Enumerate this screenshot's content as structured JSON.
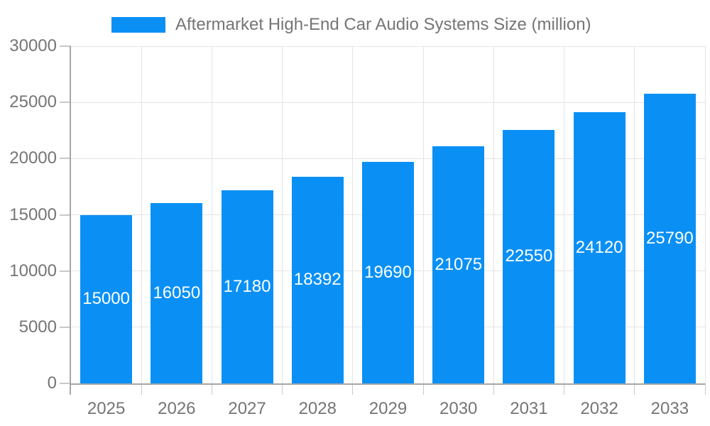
{
  "chart_data": {
    "type": "bar",
    "title": "Aftermarket High-End Car Audio Systems Size (million)",
    "legend_position": "top",
    "categories": [
      "2025",
      "2026",
      "2027",
      "2028",
      "2029",
      "2030",
      "2031",
      "2032",
      "2033"
    ],
    "series": [
      {
        "name": "Aftermarket High-End Car Audio Systems Size (million)",
        "values": [
          15000,
          16050,
          17180,
          18392,
          19690,
          21075,
          22550,
          24120,
          25790
        ],
        "color": "#0a90f5"
      }
    ],
    "xlabel": "",
    "ylabel": "",
    "ylim": [
      0,
      30000
    ],
    "yticks": [
      0,
      5000,
      10000,
      15000,
      20000,
      25000,
      30000
    ],
    "grid": true,
    "value_labels": "inside-center",
    "value_label_color": "#ffffff",
    "colors": {
      "bar": "#0a90f5",
      "grid": "#e4e4e4",
      "axis": "#a6a6a6",
      "tick": "#c9c9c9",
      "text": "#757575"
    }
  }
}
